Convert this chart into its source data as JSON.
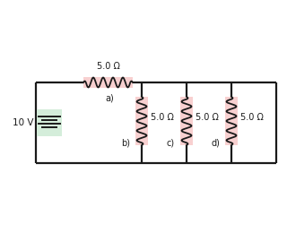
{
  "bg_color": "#ffffff",
  "battery_color": "#d4edda",
  "resistor_color": "#f8d0d0",
  "wire_color": "#1a1a1a",
  "text_color": "#1a1a1a",
  "voltage_label": "10 V",
  "resistor_a_label": "5.0 Ω",
  "resistor_b_label": "5.0 Ω",
  "resistor_c_label": "5.0 Ω",
  "resistor_d_label": "5.0 Ω",
  "label_a": "a)",
  "label_b": "b)",
  "label_c": "c)",
  "label_d": "d)",
  "figsize": [
    3.2,
    2.6
  ],
  "dpi": 100
}
